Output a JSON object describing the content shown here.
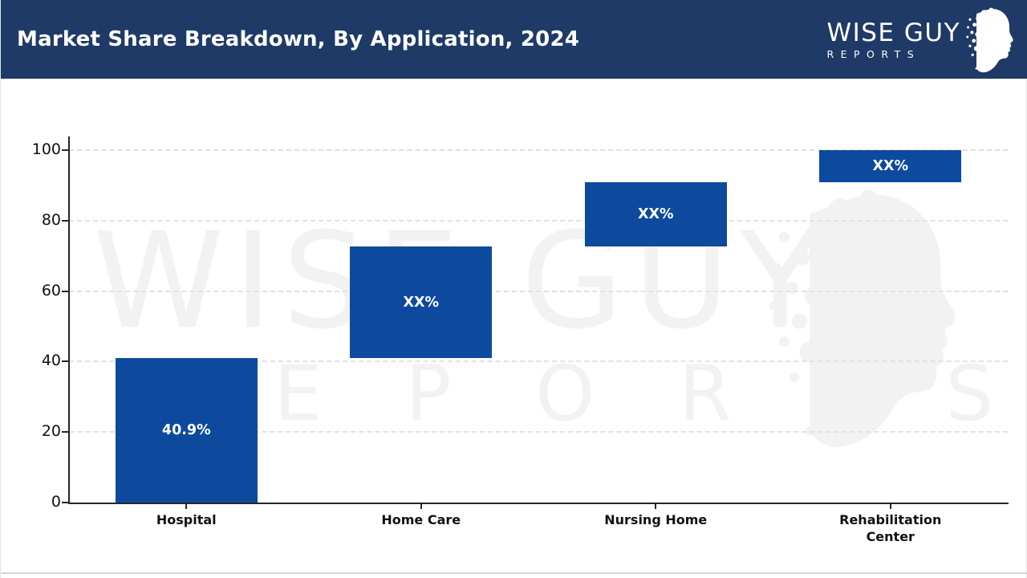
{
  "header": {
    "title": "Market Share Breakdown, By Application, 2024",
    "logo": {
      "line1": "WISE GUY",
      "line2": "REPORTS"
    }
  },
  "watermark": {
    "line1": "WISE GUY",
    "line2": "REPORTS"
  },
  "chart_data": {
    "type": "bar",
    "subtype": "waterfall",
    "title": "Market Share Breakdown, By Application, 2024",
    "categories": [
      "Hospital",
      "Home Care",
      "Nursing Home",
      "Rehabilitation Center"
    ],
    "segments": [
      {
        "label": "40.9%",
        "start": 0,
        "end": 40.9
      },
      {
        "label": "XX%",
        "start": 40.9,
        "end": 72.7
      },
      {
        "label": "XX%",
        "start": 72.7,
        "end": 90.9
      },
      {
        "label": "XX%",
        "start": 90.9,
        "end": 100
      }
    ],
    "values": [
      40.9,
      31.8,
      18.2,
      9.1
    ],
    "y_ticks": [
      0,
      20,
      40,
      60,
      80,
      100
    ],
    "ylim": [
      0,
      105
    ],
    "grid": "horizontal-dashed",
    "legend": "none",
    "bar_color": "#0d4a9e",
    "label_color": "#ffffff",
    "header_color": "#1f3a66"
  }
}
